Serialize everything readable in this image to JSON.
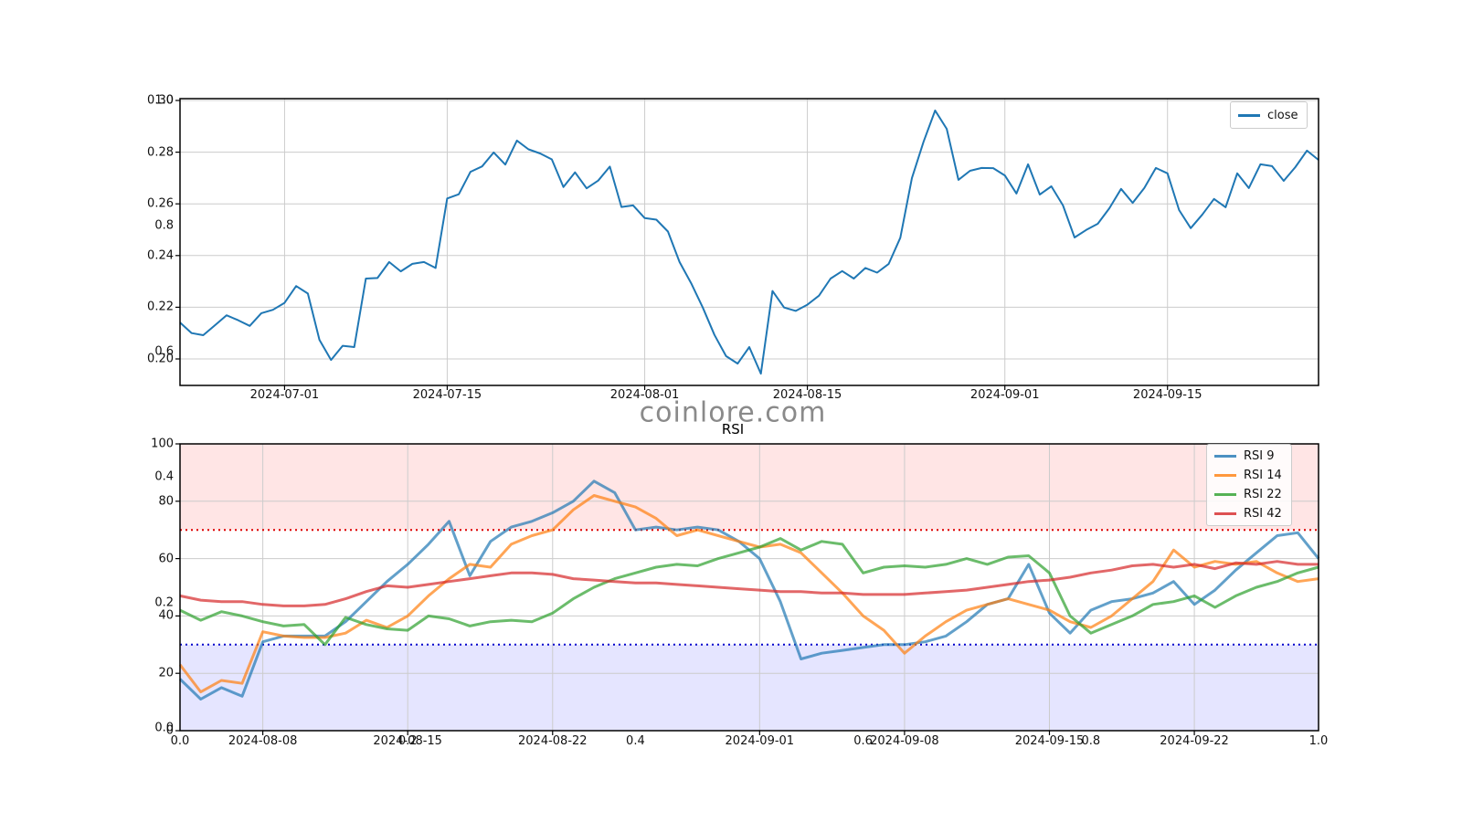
{
  "watermark": "coinlore.com",
  "colors": {
    "close_line": "#1f77b4",
    "rsi9": "#1f77b4",
    "rsi14": "#ff7f0e",
    "rsi22": "#2ca02c",
    "rsi42": "#d62728",
    "overbought_band": "rgba(255,0,0,0.10)",
    "oversold_band": "rgba(0,0,255,0.10)",
    "overbought_line": "#dd0000",
    "oversold_line": "#0000cc",
    "grid": "#cccccc",
    "axis_border": "#000000"
  },
  "chart_data": [
    {
      "type": "line",
      "title": "",
      "xlabel": "",
      "ylabel": "",
      "ylim": [
        0.19,
        0.302
      ],
      "grid": true,
      "legend_position": "upper right",
      "yticks": [
        {
          "label": "0.20",
          "value": 0.2
        },
        {
          "label": "0.22",
          "value": 0.22
        },
        {
          "label": "0.24",
          "value": 0.24
        },
        {
          "label": "0.26",
          "value": 0.26
        },
        {
          "label": "0.28",
          "value": 0.28
        },
        {
          "label": "0.30",
          "value": 0.3
        }
      ],
      "xticks": [
        {
          "label": "2024-07-01",
          "index": 9
        },
        {
          "label": "2024-07-15",
          "index": 23
        },
        {
          "label": "2024-08-01",
          "index": 40
        },
        {
          "label": "2024-08-15",
          "index": 54
        },
        {
          "label": "2024-09-01",
          "index": 71
        },
        {
          "label": "2024-09-15",
          "index": 85
        }
      ],
      "series": [
        {
          "name": "close",
          "color": "#1f77b4",
          "width": 2,
          "opacity": 1,
          "values": [
            0.2141,
            0.21,
            0.2092,
            0.213,
            0.2169,
            0.215,
            0.2128,
            0.2177,
            0.219,
            0.2217,
            0.2282,
            0.2253,
            0.2074,
            0.1996,
            0.2051,
            0.2046,
            0.2311,
            0.2313,
            0.2375,
            0.2339,
            0.2368,
            0.2375,
            0.2352,
            0.2621,
            0.2637,
            0.2724,
            0.2745,
            0.2799,
            0.2752,
            0.2845,
            0.2811,
            0.2795,
            0.2772,
            0.2665,
            0.2722,
            0.266,
            0.269,
            0.2744,
            0.2588,
            0.2594,
            0.2545,
            0.2539,
            0.2493,
            0.2375,
            0.2293,
            0.2199,
            0.2093,
            0.2011,
            0.1982,
            0.2046,
            0.1943,
            0.2263,
            0.2199,
            0.2186,
            0.221,
            0.2245,
            0.2311,
            0.234,
            0.2311,
            0.2352,
            0.2334,
            0.2368,
            0.2469,
            0.27,
            0.284,
            0.2961,
            0.289,
            0.2693,
            0.2728,
            0.2739,
            0.2738,
            0.271,
            0.264,
            0.2753,
            0.2636,
            0.2668,
            0.2594,
            0.247,
            0.2499,
            0.2523,
            0.2583,
            0.2658,
            0.2604,
            0.2661,
            0.2739,
            0.2718,
            0.2576,
            0.2506,
            0.2559,
            0.2619,
            0.2587,
            0.2718,
            0.2661,
            0.2753,
            0.2746,
            0.2689,
            0.2742,
            0.2806,
            0.277
          ]
        }
      ]
    },
    {
      "type": "line",
      "title": "RSI",
      "xlabel": "",
      "ylabel": "",
      "ylim": [
        0,
        100
      ],
      "grid": true,
      "legend_position": "upper right",
      "bands": [
        {
          "name": "overbought",
          "from": 70,
          "to": 100
        },
        {
          "name": "oversold",
          "from": 0,
          "to": 30
        }
      ],
      "threshold_lines": [
        {
          "name": "overbought-threshold",
          "value": 70,
          "style": "dotted",
          "color": "#dd0000"
        },
        {
          "name": "oversold-threshold",
          "value": 30,
          "style": "dotted",
          "color": "#0000cc"
        }
      ],
      "yticks": [
        {
          "label": "0",
          "value": 0
        },
        {
          "label": "20",
          "value": 20
        },
        {
          "label": "40",
          "value": 40
        },
        {
          "label": "60",
          "value": 60
        },
        {
          "label": "80",
          "value": 80
        },
        {
          "label": "100",
          "value": 100
        }
      ],
      "xticks": [
        {
          "label": "2024-08-08",
          "index": 4
        },
        {
          "label": "2024-08-15",
          "index": 11
        },
        {
          "label": "2024-08-22",
          "index": 18
        },
        {
          "label": "2024-09-01",
          "index": 28
        },
        {
          "label": "2024-09-08",
          "index": 35
        },
        {
          "label": "2024-09-15",
          "index": 42
        },
        {
          "label": "2024-09-22",
          "index": 49
        }
      ],
      "series": [
        {
          "name": "RSI 9",
          "color": "#1f77b4",
          "width": 3,
          "opacity": 0.7,
          "values": [
            18,
            11,
            15,
            12,
            31,
            33,
            33,
            33,
            38,
            45,
            52,
            58,
            65,
            73,
            54,
            66,
            71,
            73,
            76,
            80,
            87,
            83,
            70,
            71,
            70,
            71,
            70,
            66,
            60,
            45,
            25,
            27,
            28,
            29,
            30,
            30,
            31,
            33,
            38,
            44,
            46,
            58,
            41,
            34,
            42,
            45,
            46,
            48,
            52,
            44,
            49,
            56,
            62,
            68,
            69,
            60
          ]
        },
        {
          "name": "RSI 14",
          "color": "#ff7f0e",
          "width": 3,
          "opacity": 0.7,
          "values": [
            23,
            13.5,
            17.5,
            16.5,
            34.5,
            33,
            32.5,
            32.5,
            34,
            38.5,
            36,
            40,
            47,
            53,
            58,
            57,
            65,
            68,
            70,
            77,
            82,
            80,
            78,
            74,
            68,
            70,
            68,
            66,
            64,
            65,
            62,
            55,
            48,
            40,
            35,
            27,
            33,
            38,
            42,
            44,
            46,
            44,
            42,
            38,
            36,
            40,
            46,
            52,
            63,
            57,
            59,
            58,
            59,
            55,
            52,
            53
          ]
        },
        {
          "name": "RSI 22",
          "color": "#2ca02c",
          "width": 3,
          "opacity": 0.7,
          "values": [
            42,
            38.5,
            41.5,
            40,
            38,
            36.5,
            37,
            30,
            39.5,
            37,
            35.5,
            35,
            40,
            39,
            36.5,
            38,
            38.5,
            38,
            41,
            46,
            50,
            53,
            55,
            57,
            58,
            57.5,
            60,
            62,
            64,
            67,
            63,
            66,
            65,
            55,
            57,
            57.5,
            57,
            58,
            60,
            58,
            60.5,
            61,
            55,
            40,
            34,
            37,
            40,
            44,
            45,
            47,
            43,
            47,
            50,
            52,
            55,
            57
          ]
        },
        {
          "name": "RSI 42",
          "color": "#d62728",
          "width": 3,
          "opacity": 0.7,
          "values": [
            47,
            45.5,
            45,
            45,
            44,
            43.5,
            43.5,
            44,
            46,
            48.5,
            50.5,
            50,
            51,
            52,
            53,
            54,
            55,
            55,
            54.5,
            53,
            52.5,
            52,
            51.5,
            51.5,
            51,
            50.5,
            50,
            49.5,
            49,
            48.5,
            48.5,
            48,
            48,
            47.5,
            47.5,
            47.5,
            48,
            48.5,
            49,
            50,
            51,
            52,
            52.5,
            53.5,
            55,
            56,
            57.5,
            58,
            57,
            58,
            56.5,
            58.5,
            58,
            59,
            58,
            58
          ]
        }
      ]
    }
  ],
  "overlay_axis": {
    "yticks": [
      "1.0",
      "0.8",
      "0.6",
      "0.4",
      "0.2",
      "0.0"
    ],
    "xticks": [
      "0.0",
      "0.2",
      "0.4",
      "0.6",
      "0.8",
      "1.0"
    ]
  },
  "legends": {
    "price": [
      "close"
    ],
    "rsi": [
      "RSI 9",
      "RSI 14",
      "RSI 22",
      "RSI 42"
    ]
  }
}
